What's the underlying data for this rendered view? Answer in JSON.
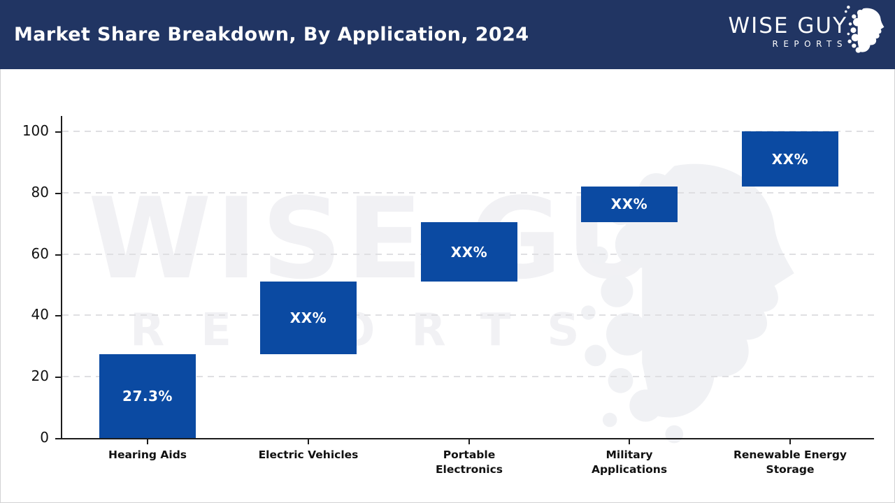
{
  "header": {
    "title": "Market Share Breakdown, By Application, 2024",
    "logo_line1": "WISE GUY",
    "logo_line2": "REPORTS"
  },
  "watermark": {
    "line1": "WISE GUY",
    "line2": "REPORTS"
  },
  "chart_data": {
    "type": "bar",
    "subtype": "waterfall",
    "title": "Market Share Breakdown, By Application, 2024",
    "xlabel": "",
    "ylabel": "",
    "ylim": [
      0,
      100
    ],
    "yticks": [
      0,
      20,
      40,
      60,
      80,
      100
    ],
    "grid": "horizontal-dashed",
    "legend": "none",
    "bar_color": "#0b4aa2",
    "value_label_color": "#ffffff",
    "categories": [
      "Hearing Aids",
      "Electric Vehicles",
      "Portable Electronics",
      "Military Applications",
      "Renewable Energy Storage"
    ],
    "category_label_lines": [
      [
        "Hearing Aids"
      ],
      [
        "Electric Vehicles"
      ],
      [
        "Portable",
        "Electronics"
      ],
      [
        "Military",
        "Applications"
      ],
      [
        "Renewable Energy",
        "Storage"
      ]
    ],
    "segments": [
      {
        "category": "Hearing Aids",
        "start": 0,
        "end": 27.3,
        "label": "27.3%"
      },
      {
        "category": "Electric Vehicles",
        "start": 27.3,
        "end": 51,
        "label": "XX%"
      },
      {
        "category": "Portable Electronics",
        "start": 51,
        "end": 70.4,
        "label": "XX%"
      },
      {
        "category": "Military Applications",
        "start": 70.4,
        "end": 82,
        "label": "XX%"
      },
      {
        "category": "Renewable Energy Storage",
        "start": 82,
        "end": 100,
        "label": "XX%"
      }
    ]
  },
  "colors": {
    "header_bg": "#213563",
    "bar": "#0b4aa2",
    "grid": "#dfdfe2",
    "axis": "#1c1c1c",
    "watermark": "#f1f1f4"
  }
}
